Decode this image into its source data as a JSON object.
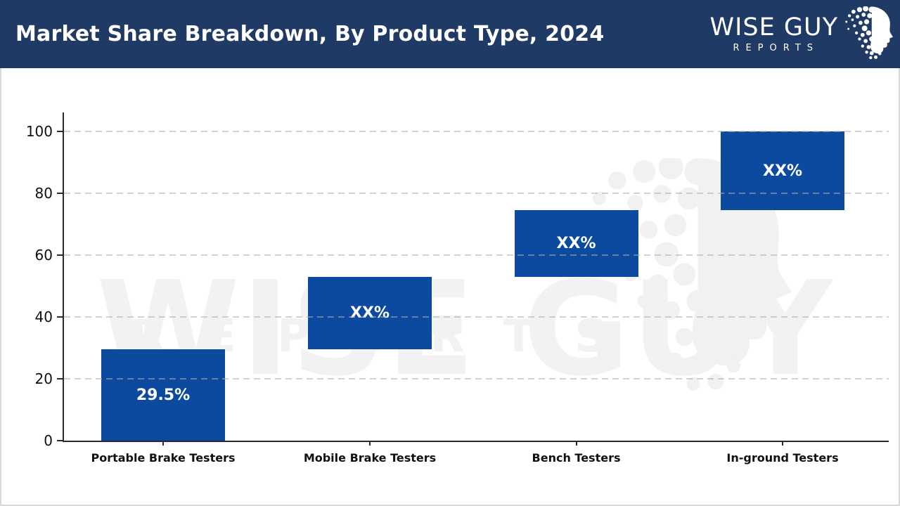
{
  "header": {
    "title": "Market Share Breakdown, By Product Type, 2024",
    "logo": {
      "primary": "WISE GUY",
      "secondary": "REPORTS",
      "icon": "dot-face-profile-icon"
    }
  },
  "watermark": {
    "primary": "WISE GUY",
    "secondary": "REPORTS",
    "icon": "dot-face-profile-icon"
  },
  "chart_data": {
    "type": "bar",
    "variant": "waterfall",
    "title": "Market Share Breakdown, By Product Type, 2024",
    "unit": "percent market share",
    "categories": [
      "Portable Brake Testers",
      "Mobile Brake Testers",
      "Bench Testers",
      "In-ground Testers"
    ],
    "series": [
      {
        "name": "Market Share",
        "segments": [
          {
            "category": "Portable Brake Testers",
            "start": 0,
            "end": 29.5,
            "label": "29.5%"
          },
          {
            "category": "Mobile Brake Testers",
            "start": 29.5,
            "end": 53,
            "label": "XX%"
          },
          {
            "category": "Bench Testers",
            "start": 53,
            "end": 74.5,
            "label": "XX%"
          },
          {
            "category": "In-ground Testers",
            "start": 74.5,
            "end": 100,
            "label": "XX%"
          }
        ]
      }
    ],
    "ylim": [
      0,
      100
    ],
    "yticks": [
      0,
      20,
      40,
      60,
      80,
      100
    ],
    "xlabel": "",
    "ylabel": "",
    "grid": "horizontal-dashed",
    "legend": "none"
  },
  "colors": {
    "header_bg": "#203a66",
    "bar": "#0b4a9e",
    "bar_label": "#ffffff",
    "axis": "#2b2b2b",
    "watermark": "#f2f2f2",
    "page_border": "#d8d8d8"
  }
}
